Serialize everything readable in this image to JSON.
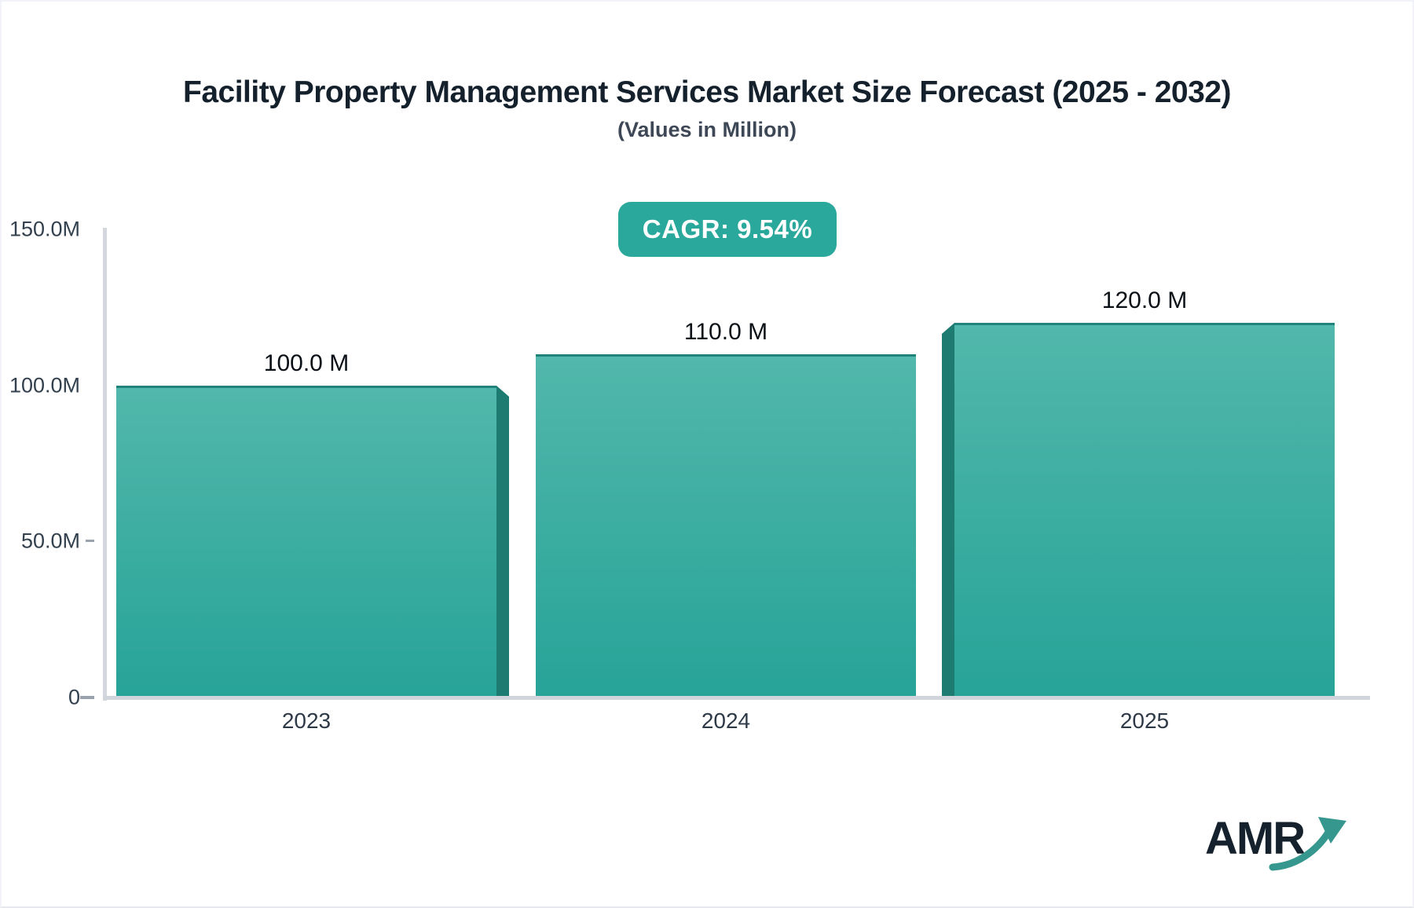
{
  "title": "Facility Property Management Services Market Size Forecast (2025 - 2032)",
  "subtitle": "(Values in Million)",
  "cagr_badge": "CAGR: 9.54%",
  "logo": {
    "text": "AMR",
    "arrow_icon": "growth-arrow-icon"
  },
  "colors": {
    "accent": "#2ba89c",
    "bar_gradient_top": "#52b7ac",
    "bar_gradient_bottom": "#27a398",
    "bar_side_face": "#1e7b72",
    "bar_top_edge": "#1f837a",
    "axis_line": "#d4d7de",
    "title_text": "#14202c",
    "axis_label_text": "#33404e",
    "badge_text": "#ffffff",
    "logo_text": "#15222d",
    "logo_arrow": "#36978e"
  },
  "chart_data": {
    "type": "bar",
    "title": "Facility Property Management Services Market Size Forecast (2025 - 2032)",
    "subtitle": "(Values in Million)",
    "unit": "Million",
    "categories": [
      "2023",
      "2024",
      "2025"
    ],
    "values": [
      100.0,
      110.0,
      120.0
    ],
    "value_labels": [
      "100.0 M",
      "110.0 M",
      "120.0 M"
    ],
    "annotation": "CAGR: 9.54%",
    "xlabel": "",
    "ylabel": "",
    "ylim": [
      0,
      150
    ],
    "grid": false,
    "legend": false,
    "y_ticks": [
      {
        "label": "150.0M",
        "value": 150,
        "tick": false
      },
      {
        "label": "100.0M",
        "value": 100,
        "tick": false
      },
      {
        "label": "50.0M",
        "value": 50,
        "tick": true
      },
      {
        "label": "0",
        "value": 0,
        "tick": true
      }
    ]
  }
}
